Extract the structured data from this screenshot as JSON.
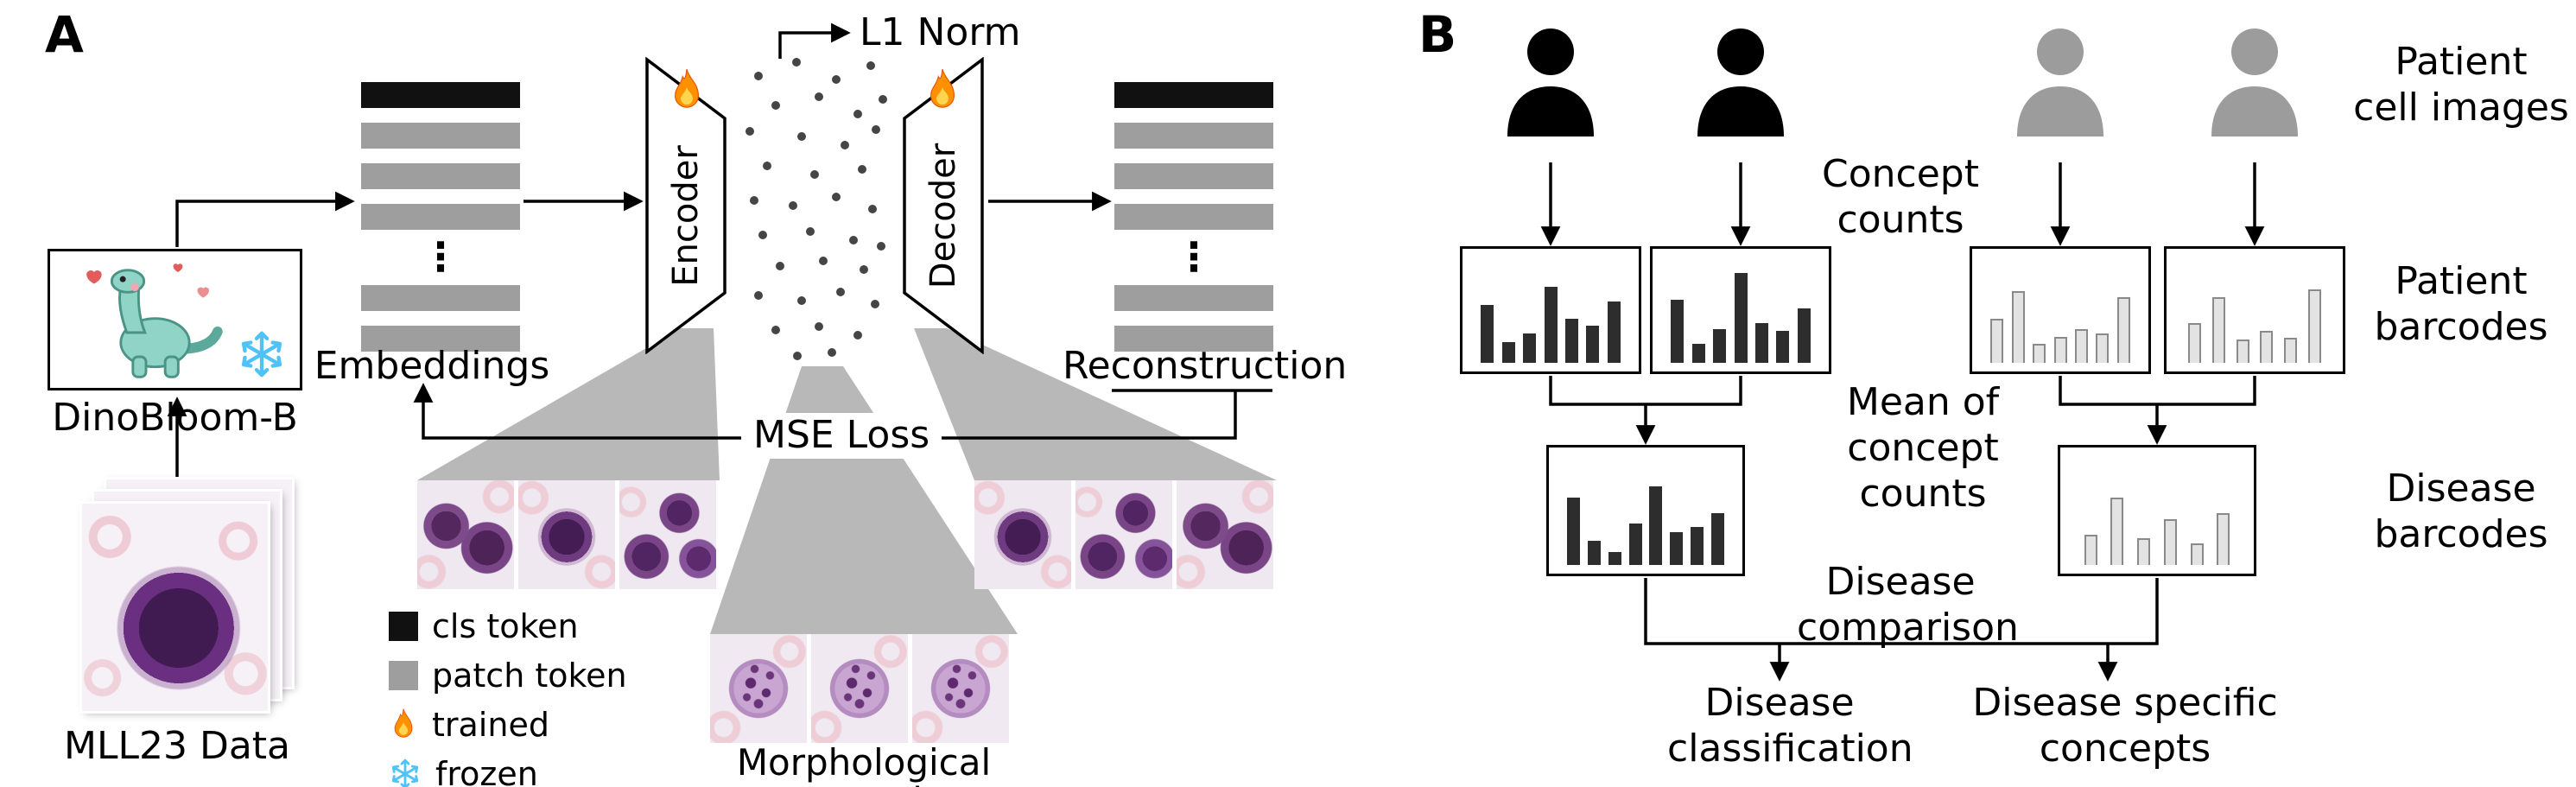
{
  "colors": {
    "cls_token": "#111111",
    "patch_token": "#9e9e9e",
    "cone_gray": "#b8b8b8",
    "person_black": "#000000",
    "person_gray": "#9c9c9c",
    "snowflake_blue": "#4fc3f7",
    "flame_orange": "#ff9100",
    "bar_dark": "#2d2d2d",
    "bar_light_fill": "#e3e3e3",
    "bar_light_edge": "#8a8a8a"
  },
  "panelA": {
    "label": "A",
    "l1_norm_label": "L1 Norm",
    "encoder_label": "Encoder",
    "decoder_label": "Decoder",
    "embeddings_label": "Embeddings",
    "reconstruction_label": "Reconstruction",
    "mse_loss_label": "MSE Loss",
    "dinobloom_label": "DinoBloom-B",
    "mll23_label": "MLL23 Data",
    "morphological_label": "Morphological concepts",
    "ellipsis": "⋮",
    "embeddings_tokens": [
      "cls",
      "patch",
      "patch",
      "patch",
      "dots",
      "patch",
      "patch"
    ],
    "reconstruction_tokens": [
      "cls",
      "patch",
      "patch",
      "patch",
      "dots",
      "patch",
      "patch"
    ],
    "legend": [
      {
        "icon": "black-square",
        "label": "cls token"
      },
      {
        "icon": "gray-square",
        "label": "patch token"
      },
      {
        "icon": "flame",
        "label": "trained"
      },
      {
        "icon": "snowflake",
        "label": "frozen"
      }
    ]
  },
  "panelB": {
    "label": "B",
    "person_colors": [
      "#000000",
      "#000000",
      "#9c9c9c",
      "#9c9c9c"
    ],
    "labels": {
      "patient_cell_images": "Patient\ncell images",
      "concept_counts": "Concept\ncounts",
      "patient_barcodes": "Patient\nbarcodes",
      "mean_of_concept_counts": "Mean of\nconcept counts",
      "disease_barcodes": "Disease\nbarcodes",
      "disease_comparison": "Disease\ncomparison",
      "disease_classification": "Disease\nclassification",
      "disease_specific_concepts": "Disease specific\nconcepts"
    },
    "patient_barcodes": [
      {
        "style": "dark",
        "bars": [
          55,
          20,
          28,
          72,
          42,
          35,
          58
        ]
      },
      {
        "style": "dark",
        "bars": [
          60,
          18,
          32,
          85,
          38,
          30,
          52
        ]
      },
      {
        "style": "light",
        "bars": [
          42,
          68,
          18,
          25,
          32,
          28,
          62
        ]
      },
      {
        "style": "light",
        "bars": [
          38,
          62,
          22,
          30,
          24,
          70
        ]
      }
    ],
    "disease_barcodes": [
      {
        "style": "dark",
        "bars": [
          62,
          22,
          12,
          38,
          72,
          30,
          35,
          48
        ]
      },
      {
        "style": "light",
        "bars": [
          28,
          62,
          25,
          42,
          20,
          48
        ]
      }
    ]
  }
}
